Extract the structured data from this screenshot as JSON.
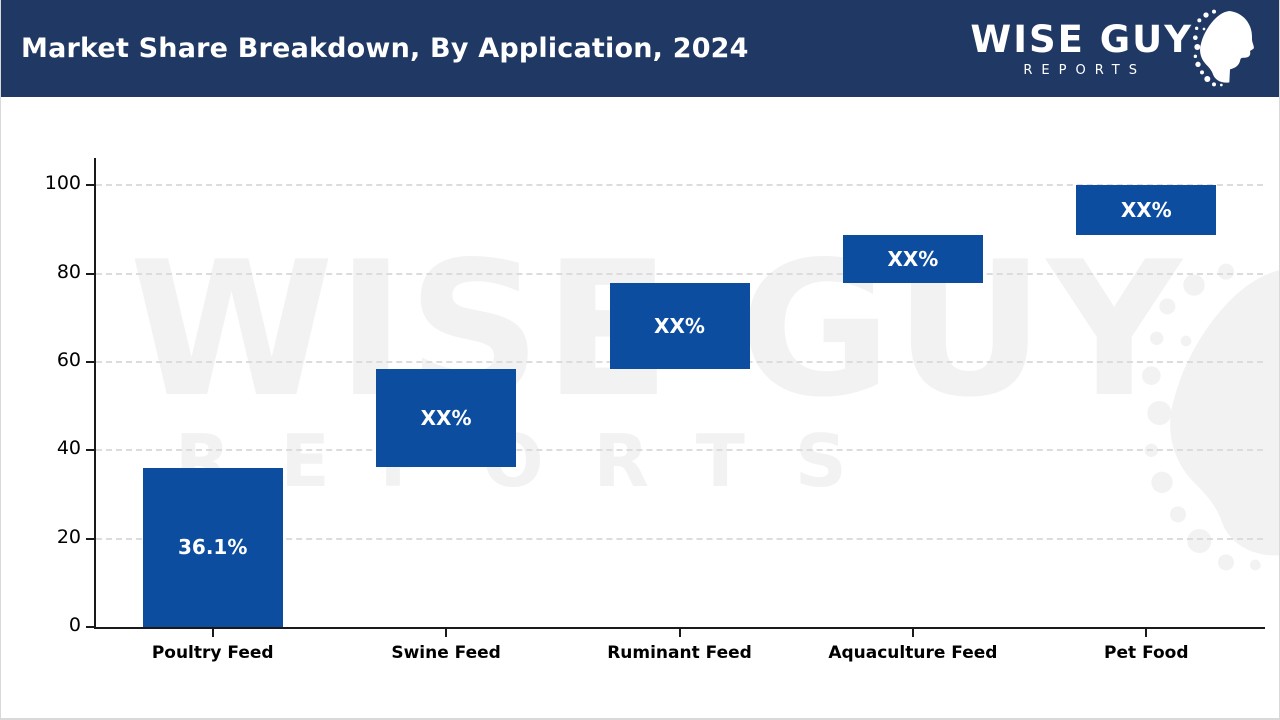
{
  "header": {
    "title": "Market Share Breakdown, By Application, 2024",
    "logo": {
      "wordmark": "WISE GUY",
      "subtext": "REPORTS"
    }
  },
  "watermark": {
    "wordmark": "WISE GUY",
    "subtext": "REPORTS"
  },
  "colors": {
    "header_bg": "#203864",
    "bar_blue": "#0c4da0",
    "bar_label": "#ffffff",
    "gridline": "#dcdcdc",
    "axis": "#1a1a1a",
    "watermark": "#f2f2f2",
    "page_border": "#d9d9d9"
  },
  "chart_data": {
    "type": "bar",
    "subtype": "floating-waterfall",
    "title": "Market Share Breakdown, By Application, 2024",
    "categories": [
      "Poultry Feed",
      "Swine Feed",
      "Ruminant Feed",
      "Aquaculture Feed",
      "Pet Food"
    ],
    "segments": [
      {
        "category": "Poultry Feed",
        "start": 0,
        "end": 36.1,
        "label": "36.1%"
      },
      {
        "category": "Swine Feed",
        "start": 36.1,
        "end": 58.3,
        "label": "XX%"
      },
      {
        "category": "Ruminant Feed",
        "start": 58.3,
        "end": 77.8,
        "label": "XX%"
      },
      {
        "category": "Aquaculture Feed",
        "start": 77.8,
        "end": 88.7,
        "label": "XX%"
      },
      {
        "category": "Pet Food",
        "start": 88.7,
        "end": 100,
        "label": "XX%"
      }
    ],
    "yticks": [
      0,
      20,
      40,
      60,
      80,
      100
    ],
    "ylim": [
      0,
      105.7
    ],
    "xlabel": "",
    "ylabel": "",
    "grid": "horizontal-dashed",
    "legend": "none",
    "bar_color": "#0c4da0",
    "bar_label_color": "#ffffff"
  }
}
